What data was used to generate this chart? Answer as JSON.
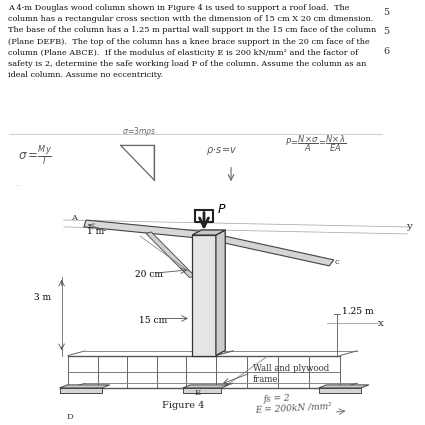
{
  "bg_color": "#f5f5f0",
  "text_color": "#111111",
  "text_lines": [
    "A 4-m Douglas wood column shown in Figure 4 is used to support a roof load.  The",
    "column has a rectangular cross section with the dimension of 15 cm X 20 cm dimension.",
    "The base of the column has a 1.25 m partial wall support in the 15 cm face of the column",
    "(Plane DEFB).  The top of the column has a knee brace support in the 20 cm face of the",
    "column (Plane ABCE).  If the modulus of elasticity E is 200 kN/mm² and the factor of",
    "safety is 2, determine the safe working load P of the column. Assume the column as an",
    "ideal column. Assume no eccentricity."
  ],
  "side_nums": "5\n5\n6",
  "fig_label": "Figure 4",
  "handwritten_note": "fs = 2\nE = 200kN /mm²"
}
